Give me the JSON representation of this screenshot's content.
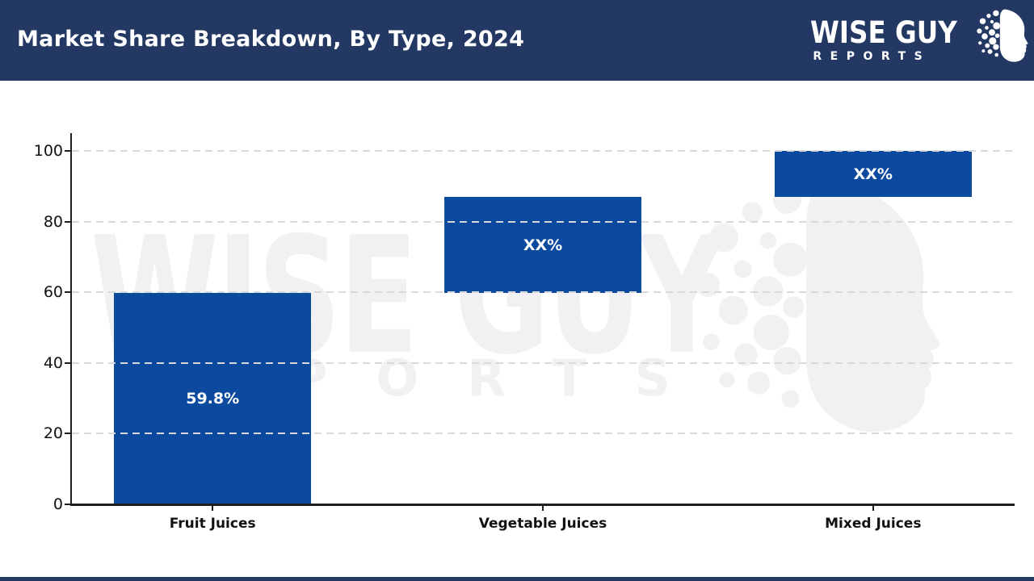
{
  "header": {
    "title": "Market Share Breakdown, By Type, 2024",
    "logo": {
      "wordmark": "WISE GUY",
      "subtext": "REPORTS",
      "icon": "head-profile-dots-icon"
    }
  },
  "watermark": {
    "wordmark": "WISE GUY",
    "subtext": "REPORTS",
    "icon": "head-profile-dots-icon"
  },
  "colors": {
    "header_bg": "#233862",
    "footer_bg": "#233862",
    "bar_fill": "#0B4A9E",
    "gridline": "#D9D9D9",
    "axis": "#1F1F1F",
    "tick_text": "#111111",
    "bar_label_text": "#FFFFFF",
    "watermark": "#F1F1F4"
  },
  "chart_data": {
    "type": "bar",
    "subtype": "waterfall",
    "title": "Market Share Breakdown, By Type, 2024",
    "categories": [
      "Fruit Juices",
      "Vegetable Juices",
      "Mixed Juices"
    ],
    "segments": [
      {
        "category": "Fruit Juices",
        "start": 0,
        "end": 59.8,
        "label": "59.8%"
      },
      {
        "category": "Vegetable Juices",
        "start": 59.8,
        "end": 86.9,
        "label": "XX%"
      },
      {
        "category": "Mixed Juices",
        "start": 86.9,
        "end": 100,
        "label": "XX%"
      }
    ],
    "xlabel": "",
    "ylabel": "",
    "ylim": [
      0,
      100
    ],
    "yticks": [
      0,
      20,
      40,
      60,
      80,
      100
    ],
    "grid": "horizontal-dashed-over-bars",
    "legend": "none"
  }
}
